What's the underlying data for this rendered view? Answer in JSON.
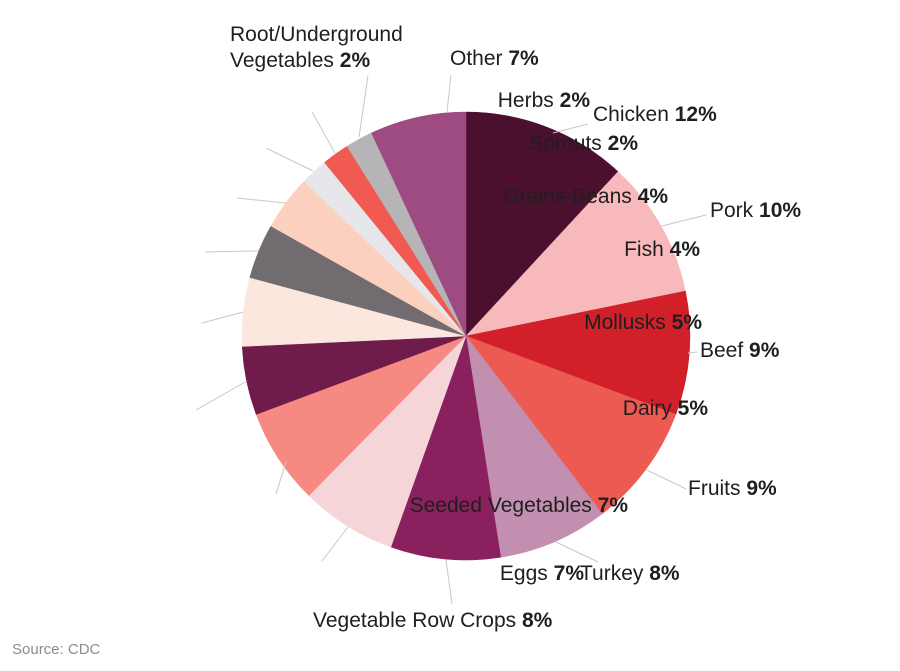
{
  "chart_data": {
    "type": "pie",
    "title": "",
    "direction": "clockwise",
    "start_angle": "top",
    "label_style": "outside-with-leader-lines",
    "slices": [
      {
        "name": "Chicken",
        "value": 12,
        "pct_label": "12%",
        "color": "#4c102f"
      },
      {
        "name": "Pork",
        "value": 10,
        "pct_label": "10%",
        "color": "#f8b9bc"
      },
      {
        "name": "Beef",
        "value": 9,
        "pct_label": "9%",
        "color": "#d1202a"
      },
      {
        "name": "Fruits",
        "value": 9,
        "pct_label": "9%",
        "color": "#ed5a52"
      },
      {
        "name": "Turkey",
        "value": 8,
        "pct_label": "8%",
        "color": "#c28fb0"
      },
      {
        "name": "Vegetable Row Crops",
        "value": 8,
        "pct_label": "8%",
        "color": "#8a215e"
      },
      {
        "name": "Eggs",
        "value": 7,
        "pct_label": "7%",
        "color": "#f6d5d8"
      },
      {
        "name": "Seeded Vegetables",
        "value": 7,
        "pct_label": "7%",
        "color": "#f68a83"
      },
      {
        "name": "Dairy",
        "value": 5,
        "pct_label": "5%",
        "color": "#6f1b4b"
      },
      {
        "name": "Mollusks",
        "value": 5,
        "pct_label": "5%",
        "color": "#fce7df"
      },
      {
        "name": "Fish",
        "value": 4,
        "pct_label": "4%",
        "color": "#706c70"
      },
      {
        "name": "Grains-Beans",
        "value": 4,
        "pct_label": "4%",
        "color": "#fbd0bf"
      },
      {
        "name": "Sprouts",
        "value": 2,
        "pct_label": "2%",
        "color": "#e7e6ea"
      },
      {
        "name": "Herbs",
        "value": 2,
        "pct_label": "2%",
        "color": "#f05a52"
      },
      {
        "name": "Root/Underground Vegetables",
        "value": 2,
        "pct_label": "2%",
        "color": "#b7b4b8"
      },
      {
        "name": "Other",
        "value": 7,
        "pct_label": "7%",
        "color": "#9d4b80"
      }
    ]
  },
  "footer": {
    "source": "Source: CDC"
  },
  "colors": {
    "background": "#ffffff",
    "label_text": "#1f1f1f",
    "leader_line": "#c8c8c8",
    "source_text": "#8d8d8d"
  }
}
